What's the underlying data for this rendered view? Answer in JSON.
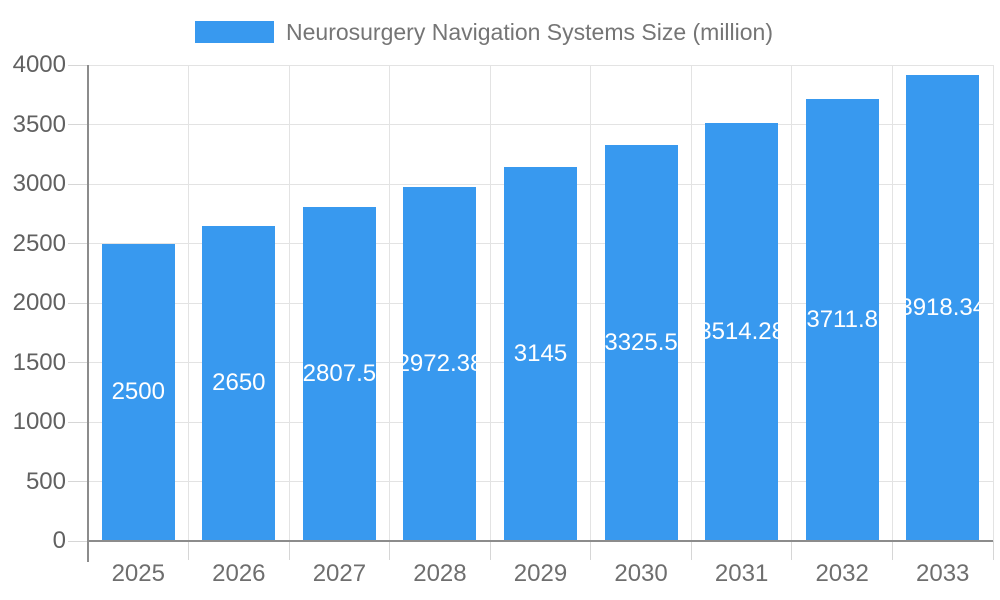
{
  "chart_data": {
    "type": "bar",
    "title": "Neurosurgery Navigation Systems Size (million)",
    "categories": [
      "2025",
      "2026",
      "2027",
      "2028",
      "2029",
      "2030",
      "2031",
      "2032",
      "2033"
    ],
    "values": [
      2500,
      2650,
      2807.5,
      2972.38,
      3145,
      3325.5,
      3514.28,
      3711.8,
      3918.34
    ],
    "value_labels": [
      "2500",
      "2650",
      "2807.5",
      "2972.38",
      "3145",
      "3325.5",
      "3514.28",
      "3711.8",
      "3918.34"
    ],
    "series": [
      {
        "name": "Neurosurgery Navigation Systems Size (million)",
        "values": [
          2500,
          2650,
          2807.5,
          2972.38,
          3145,
          3325.5,
          3514.28,
          3711.8,
          3918.34
        ]
      }
    ],
    "xlabel": "",
    "ylabel": "",
    "ylim": [
      0,
      4000
    ],
    "ytick_step": 500,
    "ytick_labels": [
      "0",
      "500",
      "1000",
      "1500",
      "2000",
      "2500",
      "3000",
      "3500",
      "4000"
    ],
    "grid": true,
    "legend_position": "top",
    "colors": {
      "bar": "#3899EF",
      "bar_label": "#FFFFFF",
      "gridline": "#E3E3E3",
      "tick": "#D6D6D6",
      "axis": "#8C8C8C",
      "y_axis_label": "#616161",
      "x_axis_label": "#6E6E6E",
      "legend_text": "#757575",
      "background": "#FFFFFF"
    }
  }
}
